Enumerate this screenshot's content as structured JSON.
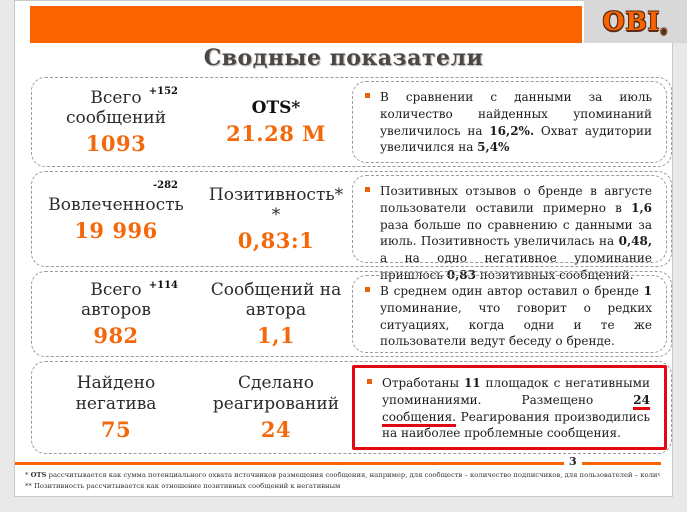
{
  "colors": {
    "brand_orange": "#fa6400",
    "value_orange": "#f3680b",
    "alert_red": "#e30613"
  },
  "header": {
    "logo_text": "OBI",
    "logo_reg_mark": "®"
  },
  "title": "Сводные показатели",
  "page_number": "3",
  "rows": [
    {
      "metric1": {
        "label_lines": [
          "Всего",
          "сообщений"
        ],
        "delta": "+152",
        "value": "1093"
      },
      "metric2": {
        "label_lines": [
          "OTS*"
        ],
        "value": "21.28 M"
      },
      "note": {
        "segments": [
          {
            "t": "В сравнении с данными за июль количество найденных упоминаний увеличилось на "
          },
          {
            "t": "16,2%.",
            "b": true
          },
          {
            "t": " Охват аудитории увеличился на "
          },
          {
            "t": "5,4%",
            "b": true
          }
        ]
      }
    },
    {
      "metric1": {
        "label_lines": [
          "Вовлеченность"
        ],
        "delta": "-282",
        "value": "19 996"
      },
      "metric2": {
        "label_lines": [
          "Позитивность*",
          "*"
        ],
        "value": "0,83:1"
      },
      "note": {
        "segments": [
          {
            "t": "Позитивных отзывов о бренде в августе пользователи оставили примерно в "
          },
          {
            "t": "1,6",
            "b": true
          },
          {
            "t": " раза больше по сравнению с данными за июль. Позитивность увеличилась на "
          },
          {
            "t": "0,48,",
            "b": true
          },
          {
            "t": " а на одно негативное упоминание пришлось "
          },
          {
            "t": "0,83",
            "b": true
          },
          {
            "t": " позитивных сообщений."
          }
        ]
      }
    },
    {
      "metric1": {
        "label_lines": [
          "Всего",
          "авторов"
        ],
        "delta": "+114",
        "value": "982"
      },
      "metric2": {
        "label_lines": [
          "Сообщений на",
          "автора"
        ],
        "value": "1,1"
      },
      "note": {
        "segments": [
          {
            "t": "В среднем один автор оставил о бренде "
          },
          {
            "t": "1",
            "b": true
          },
          {
            "t": " упоминание, что говорит о редких ситуациях, когда одни и те же пользователи ведут беседу о бренде."
          }
        ]
      }
    },
    {
      "metric1": {
        "label_lines": [
          "Найдено",
          "негатива"
        ],
        "value": "75"
      },
      "metric2": {
        "label_lines": [
          "Сделано",
          "реагирований"
        ],
        "value": "24"
      },
      "note": {
        "segments": [
          {
            "t": "Отработаны "
          },
          {
            "t": "11",
            "b": true
          },
          {
            "t": " площадок с негативными упоминаниями. Размещено "
          },
          {
            "t": "24",
            "b": true,
            "u": true
          },
          {
            "t": " сообщения.",
            "u": true
          },
          {
            "t": " Реагирования производились на наиболее проблемные сообщения."
          }
        ]
      }
    }
  ],
  "footnotes": [
    {
      "segments": [
        {
          "t": "* "
        },
        {
          "t": "OTS",
          "b": true
        },
        {
          "t": " рассчитывается как сумма потенциального охвата источников размещения сообщения, например, для сообществ – количество подписчиков, для пользователей – количество их друзей"
        }
      ]
    },
    {
      "segments": [
        {
          "t": "** Позитивность рассчитывается как отношение позитивных сообщений к негативным"
        }
      ]
    }
  ]
}
